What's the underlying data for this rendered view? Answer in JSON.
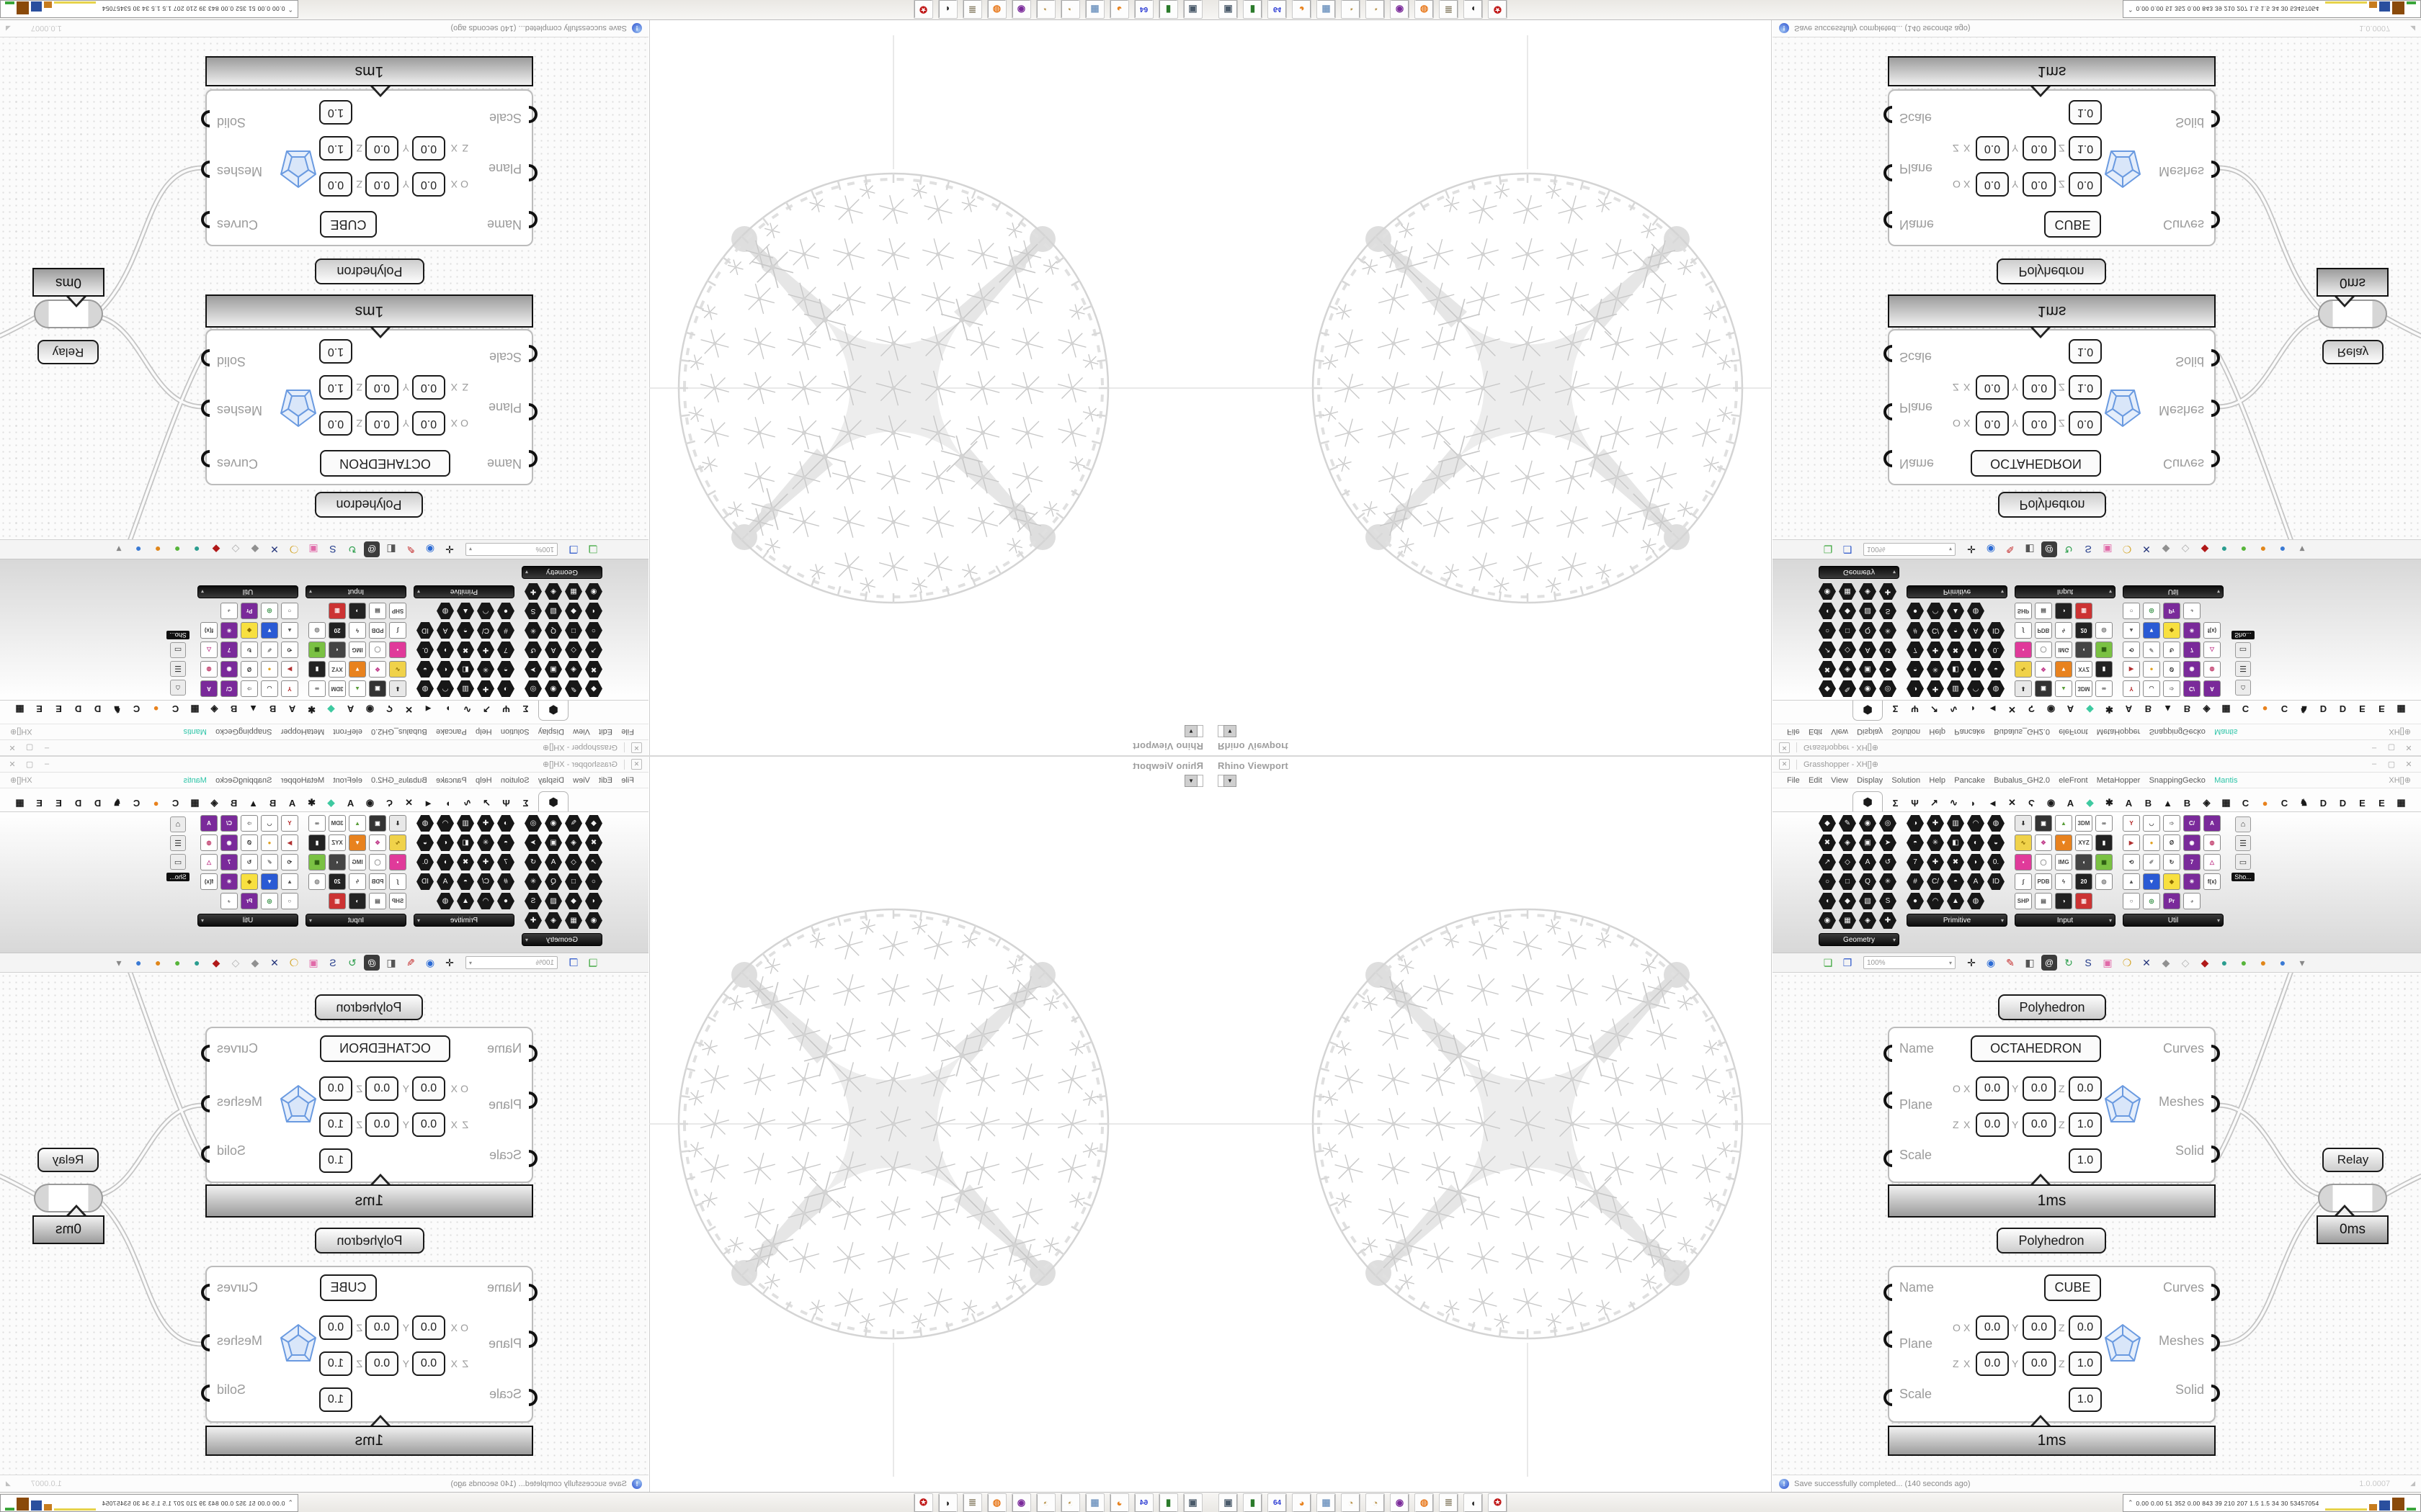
{
  "rhino": {
    "title": "Rhino Viewport"
  },
  "titlebar": {
    "corner_glyph": "✕",
    "title": "Grasshopper - XH[]⊕",
    "minimize": "–",
    "maximize": "▢",
    "close": "✕"
  },
  "menubar": {
    "items": [
      {
        "label": "File"
      },
      {
        "label": "Edit"
      },
      {
        "label": "View"
      },
      {
        "label": "Display"
      },
      {
        "label": "Solution"
      },
      {
        "label": "Help"
      },
      {
        "label": "Pancake"
      },
      {
        "label": "Bubalus_GH2.0"
      },
      {
        "label": "eleFront"
      },
      {
        "label": "MetaHopper"
      },
      {
        "label": "SnappingGecko"
      },
      {
        "label": "Mantis",
        "color": "#2bc4a7"
      }
    ],
    "doc": "XH[]⊕"
  },
  "tabs": [
    {
      "g": "⬢",
      "sel": true
    },
    {
      "g": "Σ"
    },
    {
      "g": "Ψ"
    },
    {
      "g": "↗"
    },
    {
      "g": "∿"
    },
    {
      "g": "◗"
    },
    {
      "g": "◄"
    },
    {
      "g": "✕"
    },
    {
      "g": "Ϛ"
    },
    {
      "g": "◉"
    },
    {
      "g": "A"
    },
    {
      "g": "◆",
      "c": "#3ec9a0"
    },
    {
      "g": "✱"
    },
    {
      "g": "A"
    },
    {
      "g": "B"
    },
    {
      "g": "▲"
    },
    {
      "g": "B"
    },
    {
      "g": "◈"
    },
    {
      "g": "▦"
    },
    {
      "g": "C"
    },
    {
      "g": "●",
      "c": "#e8821e"
    },
    {
      "g": "C"
    },
    {
      "g": "♞"
    },
    {
      "g": "D"
    },
    {
      "g": "D"
    },
    {
      "g": "E"
    },
    {
      "g": "E"
    },
    {
      "g": "▦"
    }
  ],
  "palette": {
    "groups": [
      {
        "label": "Geometry",
        "type": "hex",
        "cols": 4,
        "glyphs": [
          "◆",
          "✎",
          "◉",
          "◎",
          "✖",
          "◈",
          "▣",
          "➤",
          "↗",
          "◇",
          "A",
          "↺",
          "○",
          "□",
          "Q",
          "✳",
          "◖",
          "◆",
          "▧",
          "S",
          "◉",
          "▦",
          "◈",
          "✚"
        ]
      },
      {
        "label": "Primitive",
        "type": "hex",
        "cols": 5,
        "glyphs": [
          "◑",
          "✚",
          "▥",
          "◠",
          "◍",
          "◓",
          "✳",
          "◧",
          "◐",
          "◒",
          "7",
          "✚",
          "✖",
          "◗",
          "0.",
          "#",
          "C/",
          "◓",
          "A",
          "ID",
          "●",
          "◠",
          "▲",
          "◍"
        ]
      },
      {
        "label": "Input",
        "type": "sq",
        "cols": 5,
        "icons": [
          [
            "⬇",
            "#e8e8e8",
            "#333"
          ],
          [
            "▣",
            "#333",
            "#fff"
          ],
          [
            "▲",
            "#fff",
            "#5a9e3a"
          ],
          [
            "3DM",
            "#fff",
            "#444"
          ],
          [
            "∞",
            "#fff",
            "#333"
          ],
          [
            "∿",
            "#f0d24a",
            "#8a6a00"
          ],
          [
            "✥",
            "#fff",
            "#c03a8a"
          ],
          [
            "▼",
            "#e8821e",
            "#fff"
          ],
          [
            "XYZ",
            "#fff",
            "#444"
          ],
          [
            "▮",
            "#222",
            "#fff"
          ],
          [
            "▪",
            "#e03a9a",
            "#fff"
          ],
          [
            "◯",
            "#fff",
            "#888"
          ],
          [
            "IMG",
            "#fff",
            "#444"
          ],
          [
            "◖",
            "#444",
            "#fff"
          ],
          [
            "▦",
            "#7ac143",
            "#2a5a10"
          ],
          [
            "∫",
            "#fff",
            "#333"
          ],
          [
            "PDB",
            "#fff",
            "#444"
          ],
          [
            "ϟ",
            "#fff",
            "#333"
          ],
          [
            "20",
            "#222",
            "#fff"
          ],
          [
            "◎",
            "#fff",
            "#555"
          ],
          [
            "SHP",
            "#fff",
            "#444"
          ],
          [
            "▤",
            "#fff",
            "#555"
          ],
          [
            "◑",
            "#222",
            "#fff"
          ],
          [
            "▥",
            "#cc3333",
            "#fff"
          ]
        ]
      },
      {
        "label": "Util",
        "type": "sq",
        "cols": 5,
        "icons": [
          [
            "Y",
            "#fff",
            "#b02020"
          ],
          [
            "◡",
            "#fff",
            "#555"
          ],
          [
            "➩",
            "#fff",
            "#888"
          ],
          [
            "C/",
            "#7a2a9a",
            "#fff"
          ],
          [
            "A",
            "#7a2a9a",
            "#fff"
          ],
          [
            "▶",
            "#fff",
            "#b03030"
          ],
          [
            "●",
            "#fff",
            "#e0a020"
          ],
          [
            "Ø",
            "#fff",
            "#333"
          ],
          [
            "◉",
            "#7a2a9a",
            "#fff"
          ],
          [
            "◍",
            "#fff",
            "#c03a6a"
          ],
          [
            "⟲",
            "#fff",
            "#333"
          ],
          [
            "✐",
            "#fff",
            "#888"
          ],
          [
            "↻",
            "#fff",
            "#333"
          ],
          [
            "7",
            "#7a2a9a",
            "#fff"
          ],
          [
            "△",
            "#fff",
            "#c03a8a"
          ],
          [
            "▲",
            "#fff",
            "#555"
          ],
          [
            "▼",
            "#2a5ad4",
            "#fff"
          ],
          [
            "◆",
            "#f8e040",
            "#8a6a00"
          ],
          [
            "✳",
            "#7a2a9a",
            "#fff"
          ],
          [
            "f(x)",
            "#fff",
            "#333"
          ],
          [
            "○",
            "#fff",
            "#555"
          ],
          [
            "◎",
            "#fff",
            "#2a8a3a"
          ],
          [
            "Pr",
            "#7a2a9a",
            "#fff"
          ],
          [
            "◕",
            "#fff",
            "#888"
          ]
        ]
      }
    ],
    "show_strip_icons": [
      "⌂",
      "☰",
      "▭"
    ],
    "show_more": "Sho..."
  },
  "toolbar": {
    "zoom": "100%",
    "buttons": [
      {
        "g": "❏",
        "c": "#3aa53a"
      },
      {
        "g": "❐",
        "c": "#2a55c9"
      },
      {
        "g": "zoom"
      },
      {
        "g": "✛",
        "c": "#111"
      },
      {
        "g": "◉",
        "c": "#2a6ad4"
      },
      {
        "g": "✎",
        "c": "#c22525"
      },
      {
        "g": "◧",
        "c": "#555"
      },
      {
        "g": "@",
        "c": "#fff",
        "bg": true
      },
      {
        "g": "↻",
        "c": "#2a9d4a"
      },
      {
        "g": "S",
        "c": "#223a8a"
      },
      {
        "g": "▣",
        "c": "#e06aa8"
      },
      {
        "g": "❍",
        "c": "#d4a62a"
      },
      {
        "g": "✕",
        "c": "#25357a"
      },
      {
        "g": "◆",
        "c": "#909090"
      },
      {
        "g": "◇",
        "c": "#b0b0b0"
      },
      {
        "g": "◆",
        "c": "#b01818"
      },
      {
        "g": "●",
        "c": "#2a9d8f"
      },
      {
        "g": "●",
        "c": "#57b53a"
      },
      {
        "g": "●",
        "c": "#e0861a"
      },
      {
        "g": "●",
        "c": "#3a7ad4"
      },
      {
        "g": "▾",
        "c": "#888"
      }
    ]
  },
  "canvas": {
    "components": [
      {
        "header": "Polyhedron",
        "name": "OCTAHEDRON",
        "inputs": [
          "Name",
          "Plane",
          "Scale"
        ],
        "outputs": [
          "Curves",
          "Meshes",
          "Solid"
        ],
        "plane": {
          "o": [
            "O",
            "X",
            "0.0",
            "Y",
            "0.0",
            "Z",
            "0.0"
          ],
          "z": [
            "Z",
            "X",
            "0.0",
            "Y",
            "0.0",
            "Z",
            "1.0"
          ]
        },
        "scale": "1.0",
        "time": "1ms"
      },
      {
        "header": "Polyhedron",
        "name": "CUBE",
        "inputs": [
          "Name",
          "Plane",
          "Scale"
        ],
        "outputs": [
          "Curves",
          "Meshes",
          "Solid"
        ],
        "plane": {
          "o": [
            "O",
            "X",
            "0.0",
            "Y",
            "0.0",
            "Z",
            "0.0"
          ],
          "z": [
            "Z",
            "X",
            "0.0",
            "Y",
            "0.0",
            "Z",
            "1.0"
          ]
        },
        "scale": "1.0",
        "time": "1ms"
      }
    ],
    "relay": {
      "header": "Relay",
      "time": "0ms"
    }
  },
  "status": {
    "message": "Save successfully completed... (140 seconds ago)",
    "icon_glyph": "!",
    "version": "1.0.0007"
  },
  "taskbar": {
    "apps": [
      {
        "name": "display-settings",
        "g": "▣",
        "c": "#4a5a6a"
      },
      {
        "name": "package-green",
        "g": "▮",
        "c": "#2a7a2a"
      },
      {
        "name": "floppy-64",
        "g": "64",
        "c": "#2a3ad4"
      },
      {
        "name": "firefox",
        "g": "◕",
        "c": "#e8821e"
      },
      {
        "name": "calculator",
        "g": "▦",
        "c": "#7a9cc4"
      },
      {
        "name": "paint-1",
        "g": "◔",
        "c": "#b8924a"
      },
      {
        "name": "paint-2",
        "g": "◔",
        "c": "#b8924a"
      },
      {
        "name": "owl-app",
        "g": "◉",
        "c": "#7a2a9a"
      },
      {
        "name": "blender",
        "g": "◍",
        "c": "#e87a1e"
      },
      {
        "name": "scroll-doc",
        "g": "≣",
        "c": "#8a8068"
      },
      {
        "name": "fox-bw",
        "g": "◖",
        "c": "#222222"
      },
      {
        "name": "red-emblem",
        "g": "✪",
        "c": "#c01818"
      }
    ],
    "monitor": {
      "chevron": "⌃",
      "text": "0.00 0.00  51  352  0.00  843  39  210  207  1.5  1.5  34  30  53457054"
    }
  }
}
